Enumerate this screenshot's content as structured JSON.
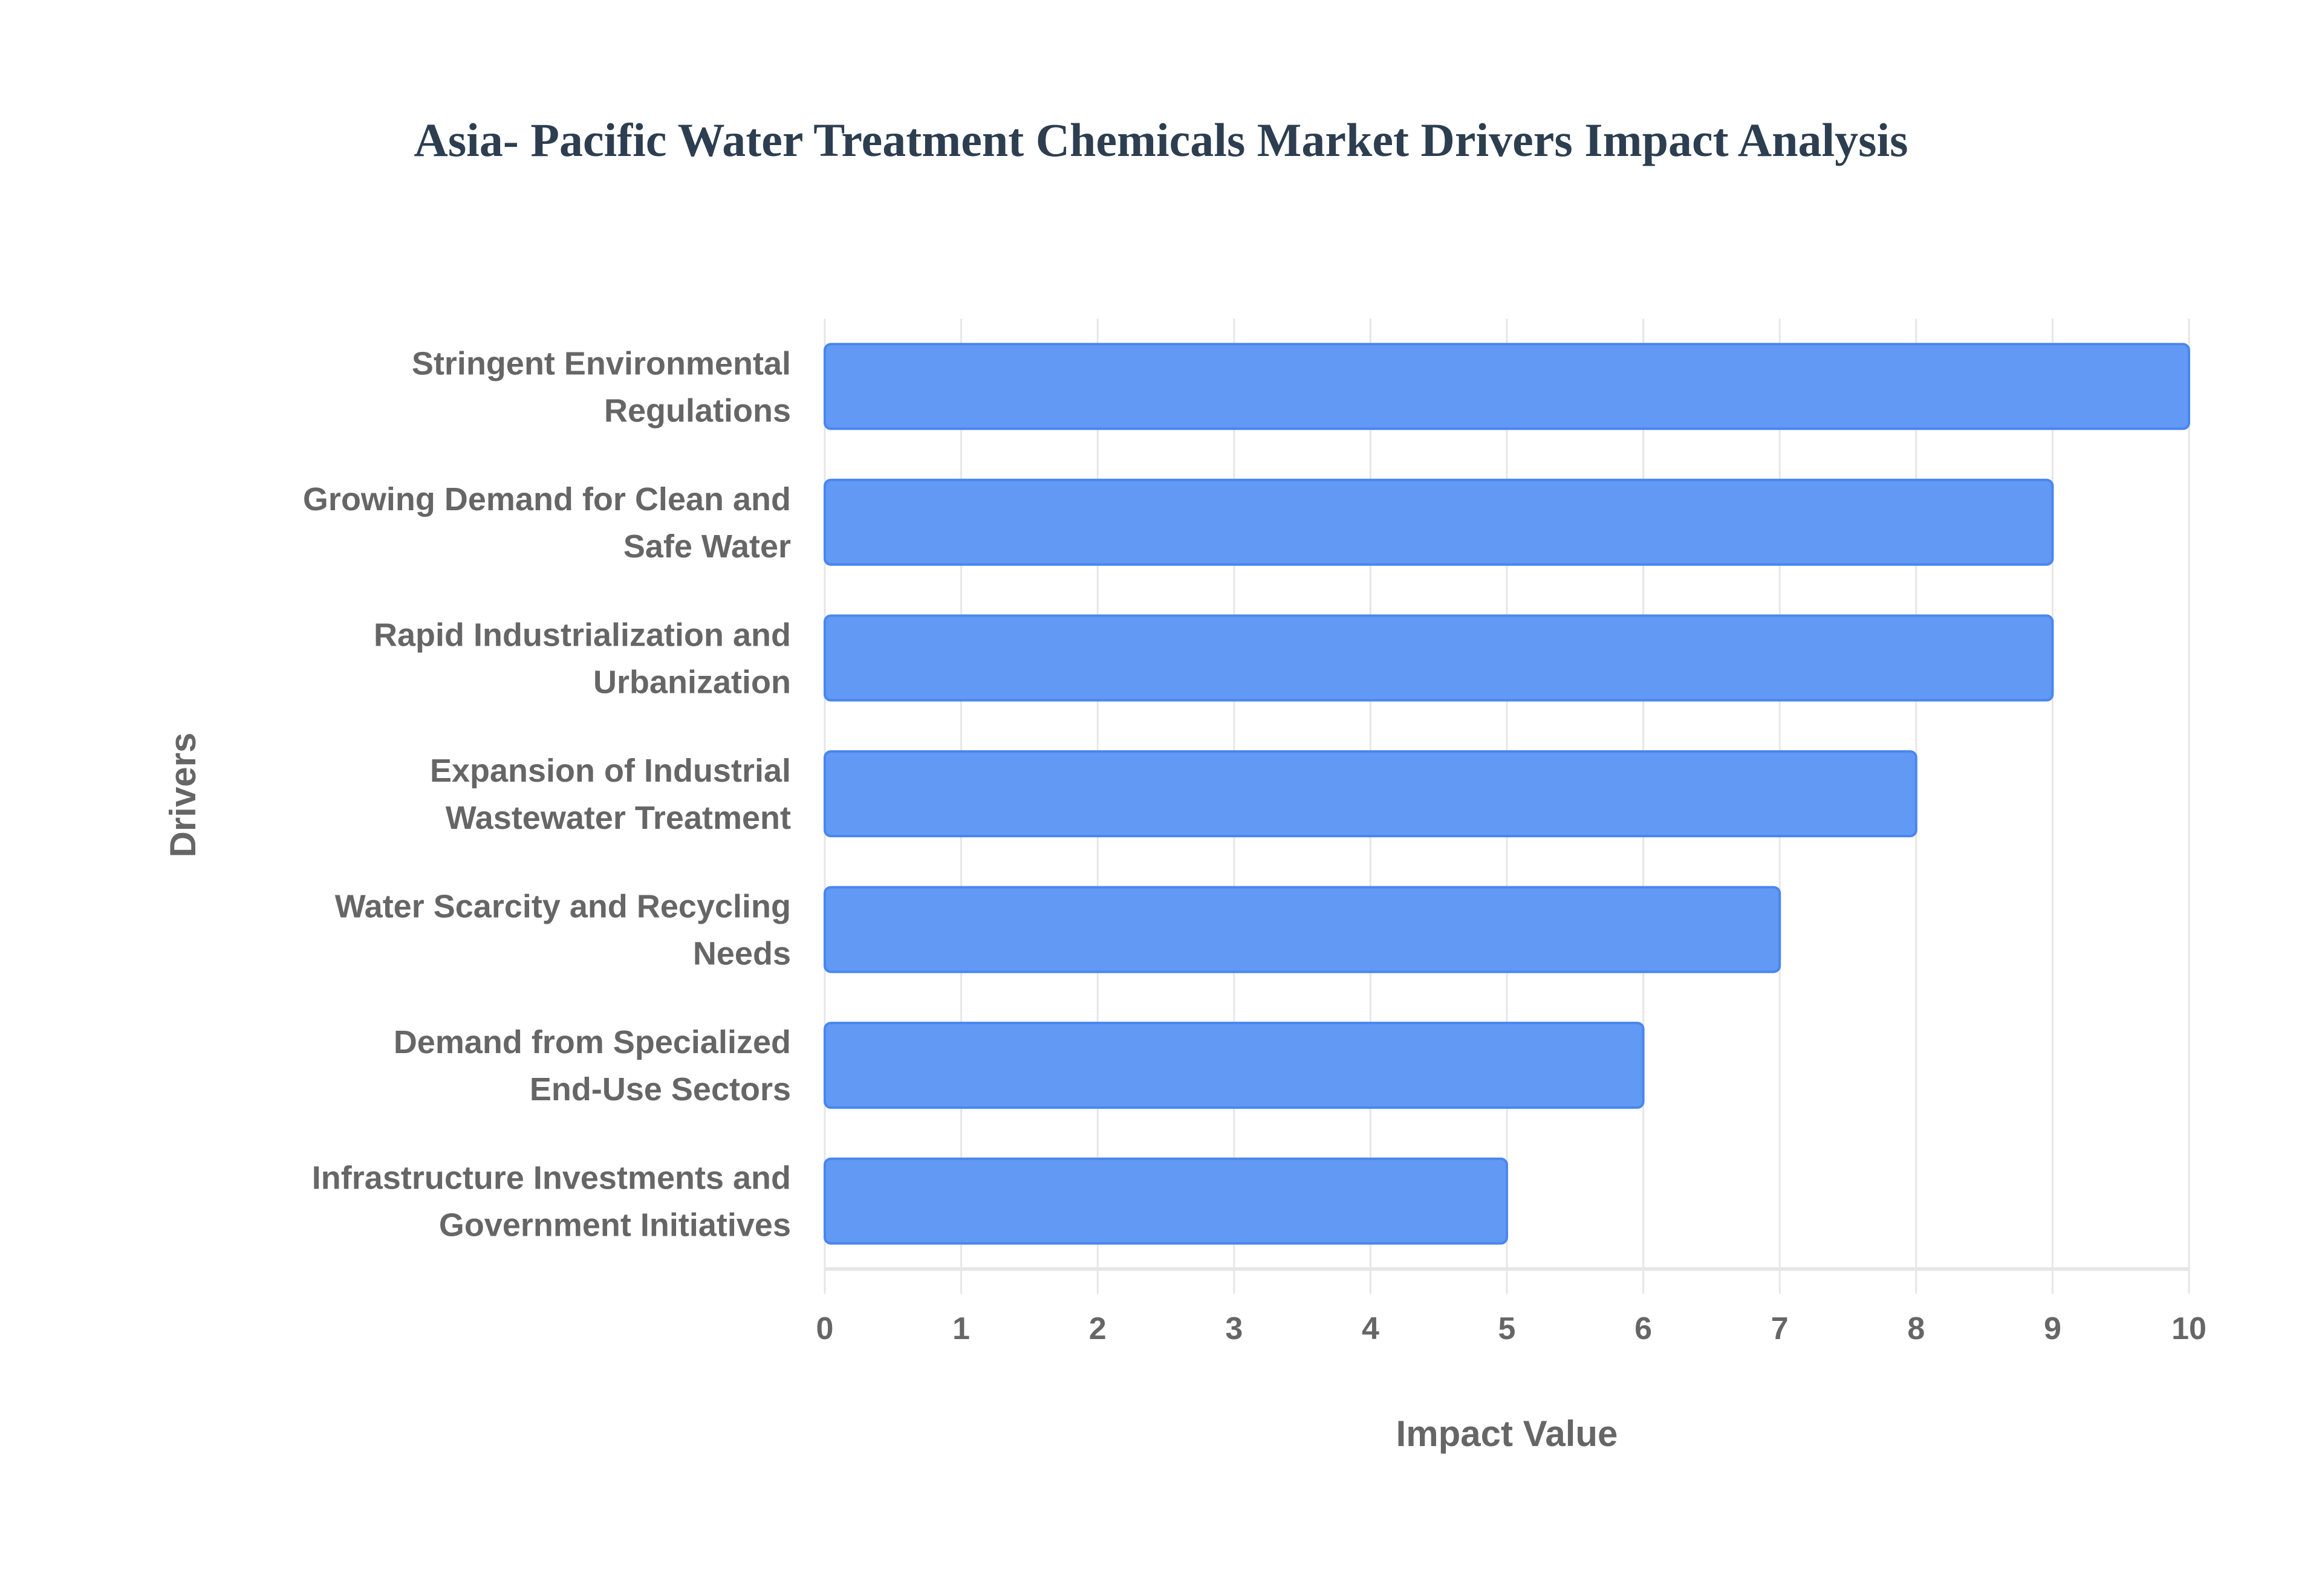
{
  "chart_data": {
    "type": "bar",
    "orientation": "horizontal",
    "title": "Asia- Pacific Water Treatment Chemicals Market Drivers Impact Analysis",
    "xlabel": "Impact Value",
    "ylabel": "Drivers",
    "categories": [
      [
        "Stringent Environmental",
        "Regulations"
      ],
      [
        "Growing Demand for Clean and",
        "Safe Water"
      ],
      [
        "Rapid Industrialization and",
        "Urbanization"
      ],
      [
        "Expansion of Industrial",
        "Wastewater Treatment"
      ],
      [
        "Water Scarcity and Recycling",
        "Needs"
      ],
      [
        "Demand from Specialized",
        "End-Use Sectors"
      ],
      [
        "Infrastructure Investments and",
        "Government Initiatives"
      ]
    ],
    "values": [
      10,
      9,
      9,
      8,
      7,
      6,
      5
    ],
    "xlim": [
      0,
      10
    ],
    "xticks": [
      "0",
      "1",
      "2",
      "3",
      "4",
      "5",
      "6",
      "7",
      "8",
      "9",
      "10"
    ],
    "grid": true,
    "bar_color": "#6199f5",
    "bar_border_color": "#4a86ee"
  }
}
